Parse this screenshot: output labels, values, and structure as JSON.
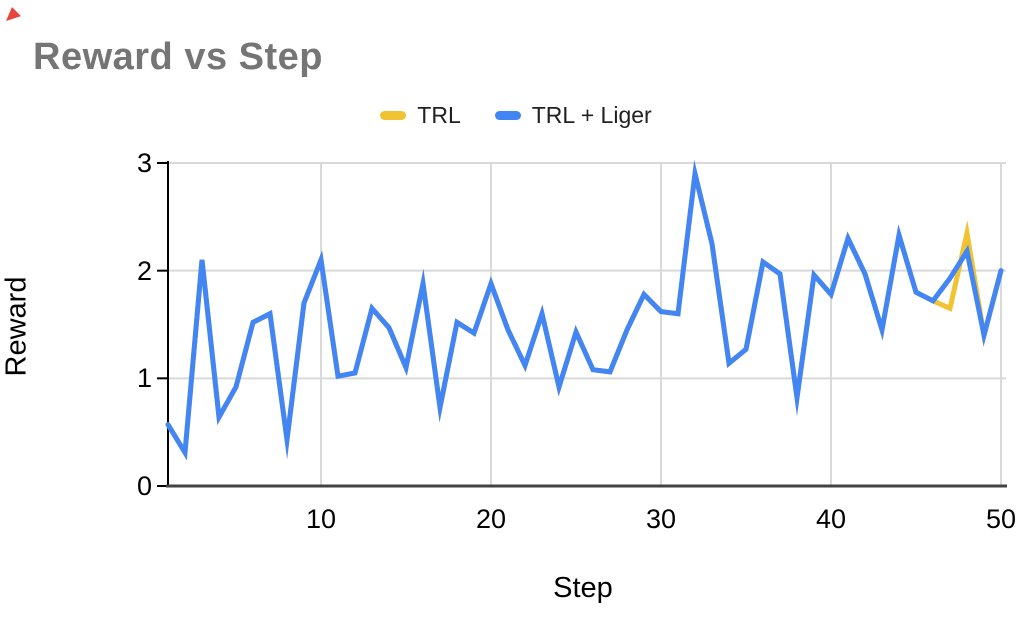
{
  "title": "Reward vs Step",
  "title_color": "#757575",
  "corner_marker": {
    "color": "#E8453C"
  },
  "legend": {
    "items": [
      {
        "label": "TRL",
        "color": "#F1C232"
      },
      {
        "label": "TRL + Liger",
        "color": "#4285F4"
      }
    ]
  },
  "axis": {
    "grid_color": "#d9d9d9",
    "y_axis_color": "#000000",
    "x_axis_color": "#424242",
    "tick_text_color": "#000000"
  },
  "chart_data": {
    "type": "line",
    "title": "Reward vs Step",
    "xlabel": "Step",
    "ylabel": "Reward",
    "xlim": [
      1,
      50
    ],
    "ylim": [
      0,
      3
    ],
    "xticks": [
      10,
      20,
      30,
      40,
      50
    ],
    "yticks": [
      0,
      1,
      2,
      3
    ],
    "grid": true,
    "legend_position": "top",
    "x": [
      1,
      2,
      3,
      4,
      5,
      6,
      7,
      8,
      9,
      10,
      11,
      12,
      13,
      14,
      15,
      16,
      17,
      18,
      19,
      20,
      21,
      22,
      23,
      24,
      25,
      26,
      27,
      28,
      29,
      30,
      31,
      32,
      33,
      34,
      35,
      36,
      37,
      38,
      39,
      40,
      41,
      42,
      43,
      44,
      45,
      46,
      47,
      48,
      49,
      50
    ],
    "series": [
      {
        "name": "TRL",
        "color": "#F1C232",
        "values": [
          0.57,
          0.31,
          2.1,
          0.64,
          0.92,
          1.52,
          1.6,
          0.43,
          1.7,
          2.1,
          1.02,
          1.05,
          1.65,
          1.47,
          1.1,
          1.88,
          0.73,
          1.52,
          1.42,
          1.88,
          1.45,
          1.12,
          1.6,
          0.92,
          1.43,
          1.08,
          1.06,
          1.45,
          1.78,
          1.62,
          1.6,
          2.9,
          2.25,
          1.14,
          1.27,
          2.08,
          1.97,
          0.82,
          1.96,
          1.78,
          2.3,
          1.97,
          1.45,
          2.33,
          1.8,
          1.72,
          1.65,
          2.35,
          1.4,
          2.0
        ]
      },
      {
        "name": "TRL + Liger",
        "color": "#4285F4",
        "values": [
          0.57,
          0.31,
          2.1,
          0.64,
          0.92,
          1.52,
          1.6,
          0.43,
          1.7,
          2.1,
          1.02,
          1.05,
          1.65,
          1.47,
          1.1,
          1.88,
          0.73,
          1.52,
          1.42,
          1.88,
          1.45,
          1.12,
          1.6,
          0.92,
          1.43,
          1.08,
          1.06,
          1.45,
          1.78,
          1.62,
          1.6,
          2.9,
          2.25,
          1.14,
          1.27,
          2.08,
          1.97,
          0.82,
          1.96,
          1.78,
          2.3,
          1.97,
          1.45,
          2.33,
          1.8,
          1.72,
          1.93,
          2.18,
          1.4,
          2.0
        ]
      }
    ]
  }
}
